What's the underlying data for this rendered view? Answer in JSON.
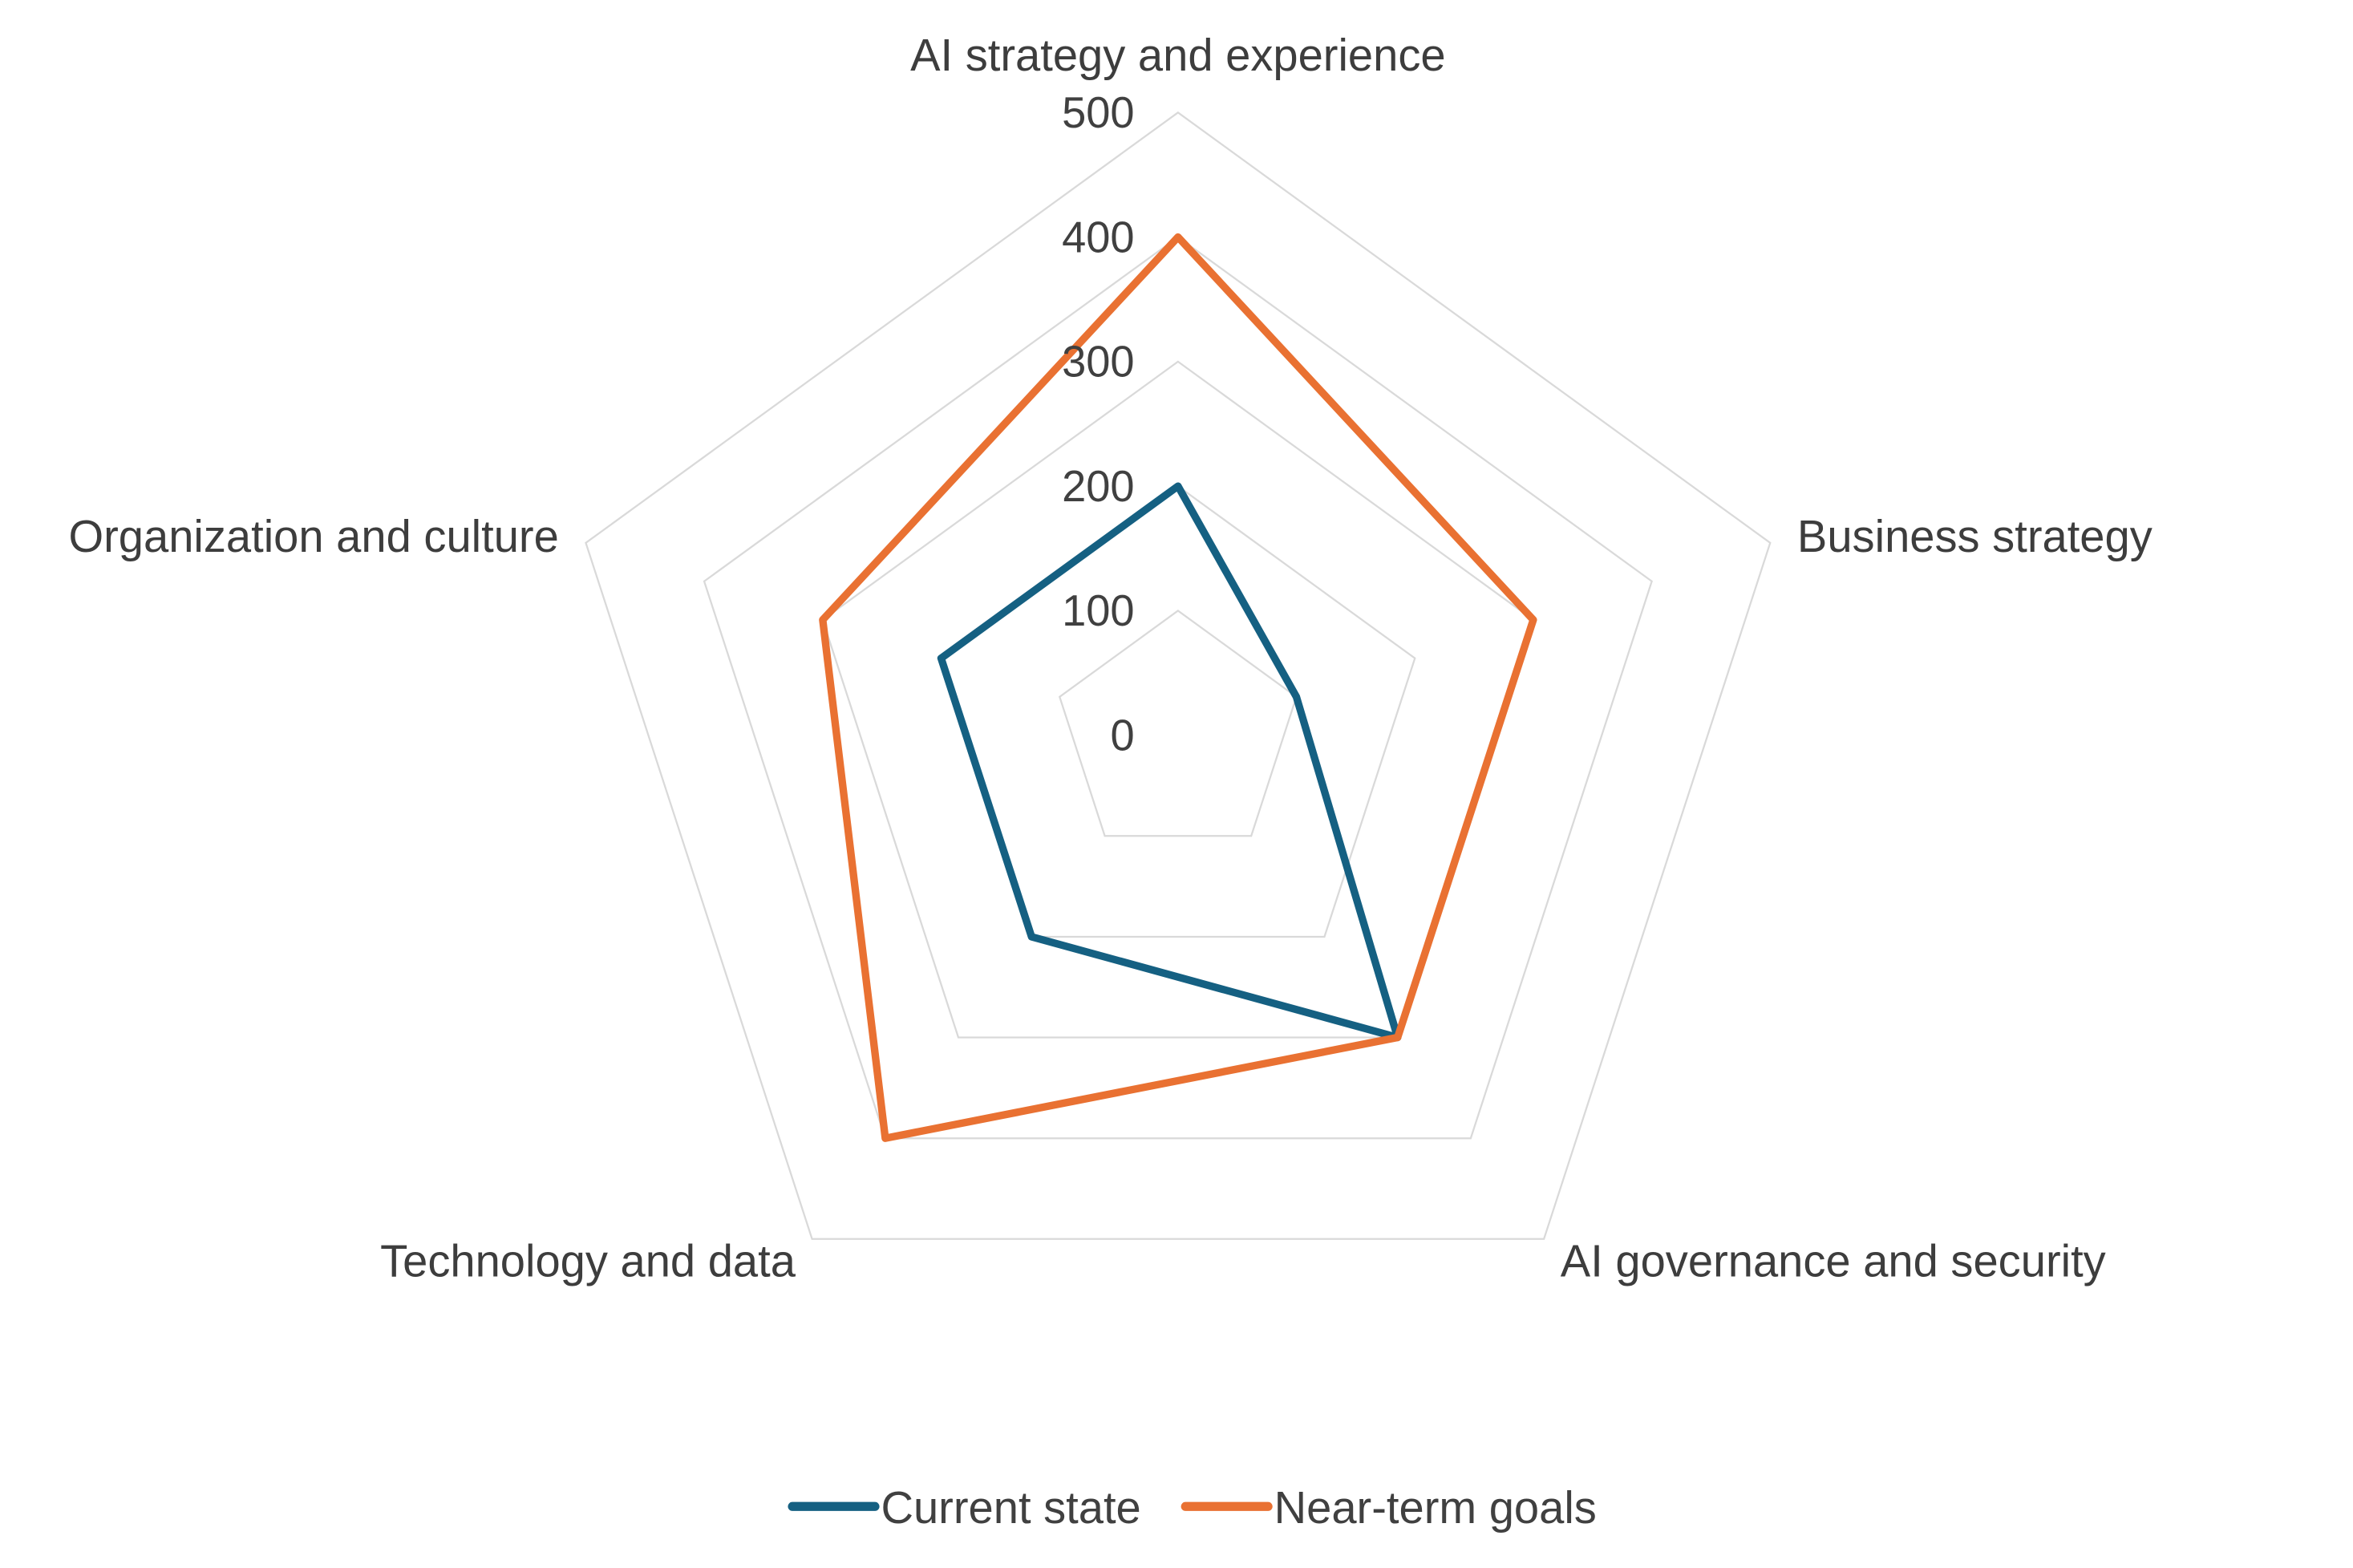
{
  "chart_data": {
    "type": "radar",
    "title": "",
    "categories": [
      "AI strategy and experience",
      "Business strategy",
      "AI governance and security",
      "Technology and data",
      "Organization and culture"
    ],
    "series": [
      {
        "name": "Current state",
        "color": "#156082",
        "values": [
          200,
          100,
          300,
          200,
          200
        ]
      },
      {
        "name": "Near-term goals",
        "color": "#E97132",
        "values": [
          400,
          300,
          300,
          400,
          300
        ]
      }
    ],
    "axis": {
      "min": 0,
      "max": 500,
      "tick_interval": 100,
      "tick_labels": [
        "0",
        "100",
        "200",
        "300",
        "400",
        "500"
      ]
    },
    "grid": {
      "rings": [
        100,
        200,
        300,
        400,
        500
      ],
      "color": "#D9D9D9",
      "shape": "pentagon"
    },
    "legend_position": "bottom"
  }
}
